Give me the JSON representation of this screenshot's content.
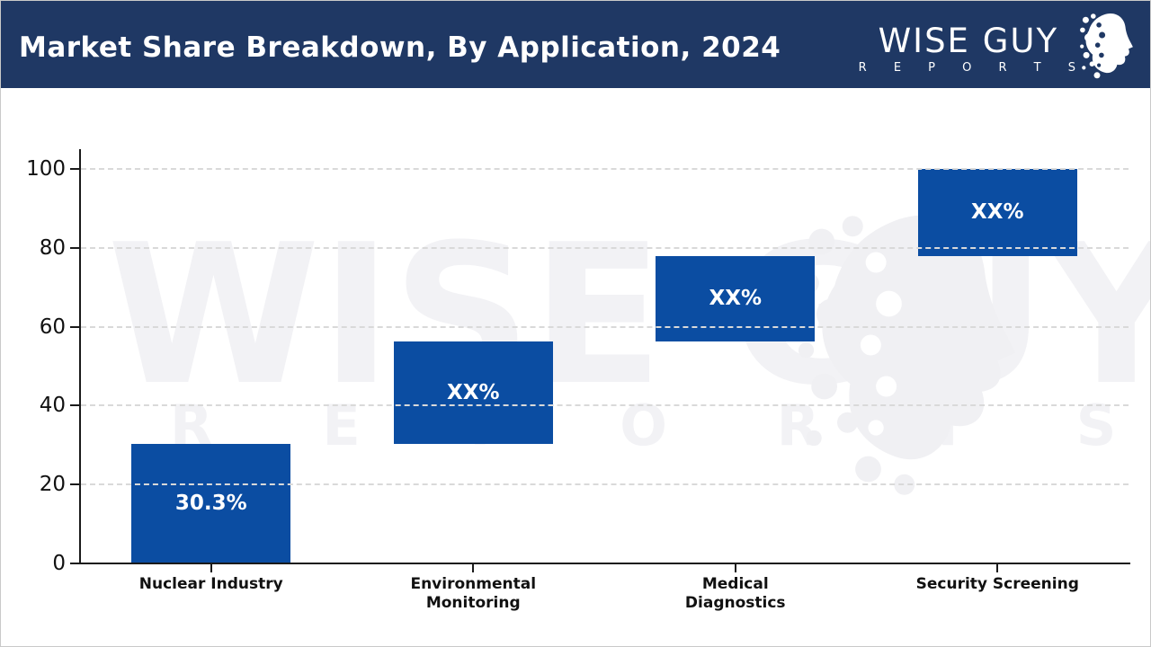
{
  "header": {
    "title": "Market Share Breakdown, By Application, 2024",
    "logo": {
      "line1": "WISE GUY",
      "line2": "REPORTS"
    }
  },
  "watermark": {
    "line1": "WISE GUY",
    "line2": "REPORTS"
  },
  "colors": {
    "header_bg": "#1f3864",
    "bar_fill": "#0b4da2",
    "bar_label": "#ffffff",
    "gridline": "#d9d9d9",
    "axis": "#1a1a1a",
    "watermark": "#f2f2f5"
  },
  "chart_data": {
    "type": "bar",
    "variant": "waterfall",
    "title": "Market Share Breakdown, By Application, 2024",
    "categories": [
      "Nuclear Industry",
      "Environmental Monitoring",
      "Medical Diagnostics",
      "Security Screening"
    ],
    "segments": [
      {
        "category": "Nuclear Industry",
        "category_lines": [
          "Nuclear Industry"
        ],
        "start": 0,
        "end": 30.3,
        "label": "30.3%"
      },
      {
        "category": "Environmental Monitoring",
        "category_lines": [
          "Environmental",
          "Monitoring"
        ],
        "start": 30.3,
        "end": 56.3,
        "label": "XX%"
      },
      {
        "category": "Medical Diagnostics",
        "category_lines": [
          "Medical",
          "Diagnostics"
        ],
        "start": 56.3,
        "end": 78,
        "label": "XX%"
      },
      {
        "category": "Security Screening",
        "category_lines": [
          "Security Screening"
        ],
        "start": 78,
        "end": 100,
        "label": "XX%"
      }
    ],
    "ylabel": "",
    "xlabel": "",
    "yticks": [
      0,
      20,
      40,
      60,
      80,
      100
    ],
    "ylim": [
      0,
      105
    ],
    "grid": true,
    "grid_style": "dashed-horizontal",
    "legend": false
  }
}
